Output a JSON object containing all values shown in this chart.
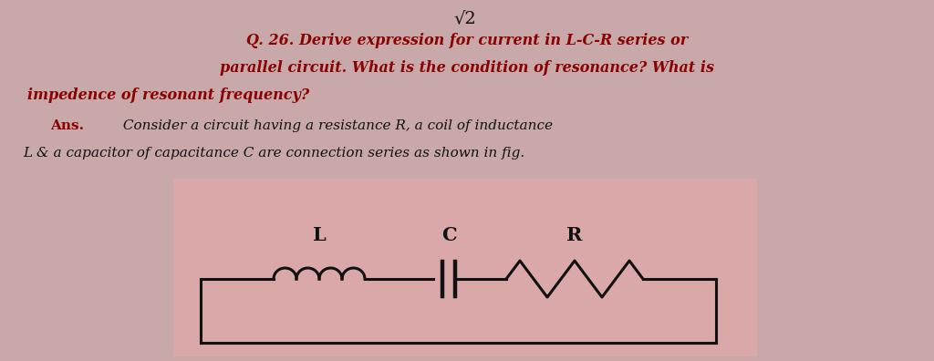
{
  "background_color": "#c8a8a8",
  "sqrt2_text": "√2",
  "question_text_line1": "Q. 26. Derive expression for current in L-C-R series or",
  "question_text_line2": "parallel circuit. What is the condition of resonance? What is",
  "question_text_line3": "impedence of resonant frequency?",
  "ans_label": "Ans.",
  "ans_text_line1": " Consider a circuit having a resistance R, a coil of inductance",
  "ans_text_line2": "L & a capacitor of capacitance C are connection series as shown in fig.",
  "question_color": "#8B0000",
  "ans_label_color": "#8B0000",
  "ans_text_color": "#111111",
  "title_color": "#111111",
  "circuit_bg": "#daa8a8",
  "circuit_line_color": "#111111",
  "label_L": "L",
  "label_C": "C",
  "label_R": "R"
}
